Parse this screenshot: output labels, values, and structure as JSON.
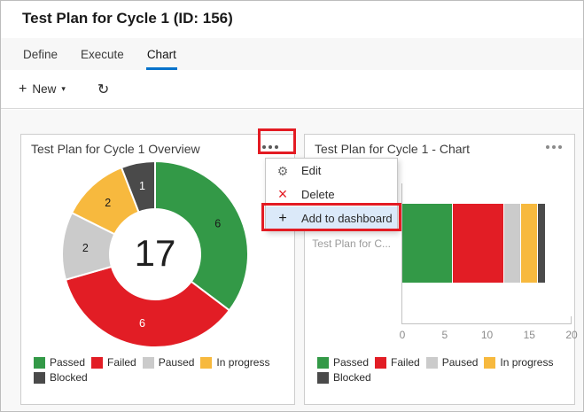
{
  "header": {
    "title": "Test Plan for Cycle 1 (ID: 156)"
  },
  "tabs": [
    {
      "label": "Define"
    },
    {
      "label": "Execute"
    },
    {
      "label": "Chart"
    }
  ],
  "active_tab": "Chart",
  "toolbar": {
    "new_label": "New",
    "plus_icon": "+",
    "chevron_icon": "▾",
    "refresh_icon": "↻"
  },
  "widgets": [
    {
      "title": "Test Plan for Cycle 1 Overview"
    },
    {
      "title": "Test Plan for Cycle 1 - Chart"
    }
  ],
  "context_menu": {
    "items": [
      {
        "label": "Edit",
        "icon": "gear-icon"
      },
      {
        "label": "Delete",
        "icon": "delete-x-icon"
      },
      {
        "label": "Add to dashboard",
        "icon": "plus-icon",
        "highlighted": true
      }
    ]
  },
  "legend": [
    "Passed",
    "Failed",
    "Paused",
    "In progress",
    "Blocked"
  ],
  "colors": {
    "Passed": "#339947",
    "Failed": "#E21D25",
    "Paused": "#CBCBCB",
    "In progress": "#F7B93E",
    "Blocked": "#4A4A4A",
    "accent_blue": "#0672CB",
    "highlight_red": "#E31B23",
    "menu_highlight_bg": "#DBE9F9"
  },
  "chart_data": [
    {
      "type": "donut",
      "title": "Test Plan for Cycle 1 Overview",
      "center_total": 17,
      "start_angle": 0,
      "direction": "clockwise",
      "series": [
        {
          "name": "Passed",
          "value": 6,
          "color": "#339947",
          "label_color": "#1a1a1a"
        },
        {
          "name": "Failed",
          "value": 6,
          "color": "#E21D25",
          "label_color": "#ffffff"
        },
        {
          "name": "Paused",
          "value": 2,
          "color": "#CBCBCB",
          "label_color": "#1a1a1a"
        },
        {
          "name": "In progress",
          "value": 2,
          "color": "#F7B93E",
          "label_color": "#1a1a1a"
        },
        {
          "name": "Blocked",
          "value": 1,
          "color": "#4A4A4A",
          "label_color": "#ffffff"
        }
      ],
      "legend": [
        "Passed",
        "Failed",
        "Paused",
        "In progress",
        "Blocked"
      ],
      "legend_position": "bottom"
    },
    {
      "type": "stacked-bar-horizontal",
      "title": "Test Plan for Cycle 1 - Chart",
      "category_label": "Test Plan for C...",
      "series": [
        {
          "name": "Passed",
          "value": 6,
          "color": "#339947"
        },
        {
          "name": "Failed",
          "value": 6,
          "color": "#E21D25"
        },
        {
          "name": "Paused",
          "value": 2,
          "color": "#CBCBCB"
        },
        {
          "name": "In progress",
          "value": 2,
          "color": "#F7B93E"
        },
        {
          "name": "Blocked",
          "value": 1,
          "color": "#4A4A4A"
        }
      ],
      "xlim": [
        0,
        20
      ],
      "x_ticks": [
        0,
        5,
        10,
        15,
        20
      ],
      "grid": false,
      "legend": [
        "Passed",
        "Failed",
        "Paused",
        "In progress",
        "Blocked"
      ],
      "legend_position": "bottom"
    }
  ]
}
